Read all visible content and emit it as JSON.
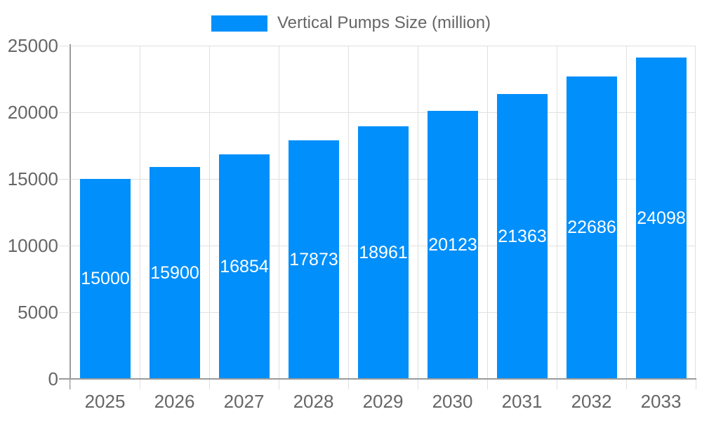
{
  "chart_data": {
    "type": "bar",
    "title": "",
    "legend_position": "top-center",
    "legend": [
      "Vertical Pumps Size (million)"
    ],
    "categories": [
      "2025",
      "2026",
      "2027",
      "2028",
      "2029",
      "2030",
      "2031",
      "2032",
      "2033"
    ],
    "series": [
      {
        "name": "Vertical Pumps Size (million)",
        "values": [
          15000,
          15900,
          16854,
          17873,
          18961,
          20123,
          21363,
          22686,
          24098
        ]
      }
    ],
    "value_labels": [
      "15000",
      "15900",
      "16854",
      "17873",
      "18961",
      "20123",
      "21363",
      "22686",
      "24098"
    ],
    "xlabel": "",
    "ylabel": "",
    "ylim": [
      0,
      25000
    ],
    "yticks": [
      0,
      5000,
      10000,
      15000,
      20000,
      25000
    ],
    "ytick_labels": [
      "0",
      "5000",
      "10000",
      "15000",
      "20000",
      "25000"
    ],
    "grid": true,
    "colors": {
      "bar": "#008ffb",
      "value_label": "#ffffff",
      "axis_text": "#666666",
      "grid_line": "#e0e0e0",
      "axis_line": "#9a9a9a",
      "background": "#ffffff"
    }
  }
}
